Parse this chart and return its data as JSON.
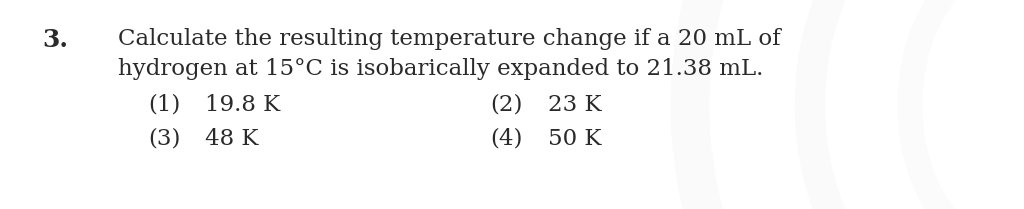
{
  "number": "3.",
  "question_line1": "Calculate the resulting temperature change if a 20 mL of",
  "question_line2": "hydrogen at 15°C is isobarically expanded to 21.38 mL.",
  "opt1_label": "(1)",
  "opt1_val": "19.8 K",
  "opt2_label": "(2)",
  "opt2_val": "23 K",
  "opt3_label": "(3)",
  "opt3_val": "48 K",
  "opt4_label": "(4)",
  "opt4_val": "50 K",
  "bg_color": "#ffffff",
  "text_color": "#2a2a2a",
  "watermark_color": "#c8c8c8",
  "font_size_question": 16.5,
  "font_size_options": 16.5,
  "number_font_size": 18
}
